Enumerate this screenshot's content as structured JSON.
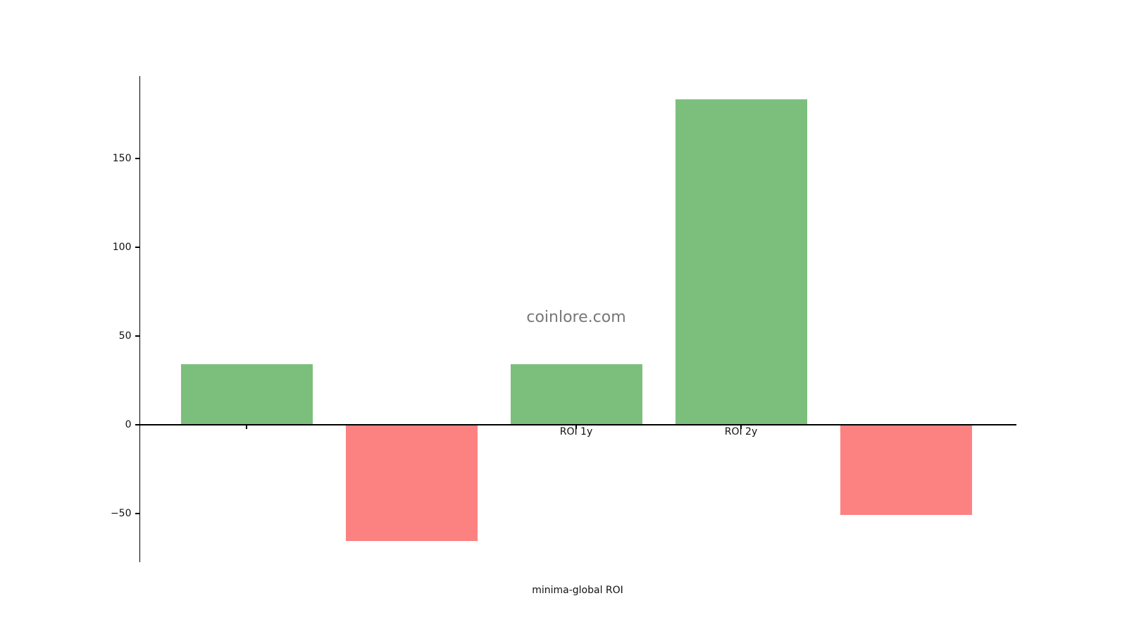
{
  "chart_data": {
    "type": "bar",
    "categories": [
      "",
      "",
      "ROI 1y",
      "ROI 2y",
      ""
    ],
    "values": [
      34.3,
      -65.6,
      34.3,
      183.5,
      -51.0
    ],
    "bar_colors": [
      "#7cbf7d",
      "#fc8181",
      "#7cbf7d",
      "#7cbf7d",
      "#fc8181"
    ],
    "positive_color": "#7cbf7d",
    "negative_color": "#fc8181",
    "title": "",
    "xlabel": "minima-global ROI",
    "ylabel": "",
    "yticks": [
      150,
      100,
      50,
      0,
      -50
    ],
    "ylim": [
      -77.4,
      196.4
    ],
    "grid": false,
    "legend_position": "none",
    "watermark": "coinlore.com",
    "axis_color": "#000000",
    "tick_label_color": "#111111",
    "watermark_color": "#777777"
  }
}
